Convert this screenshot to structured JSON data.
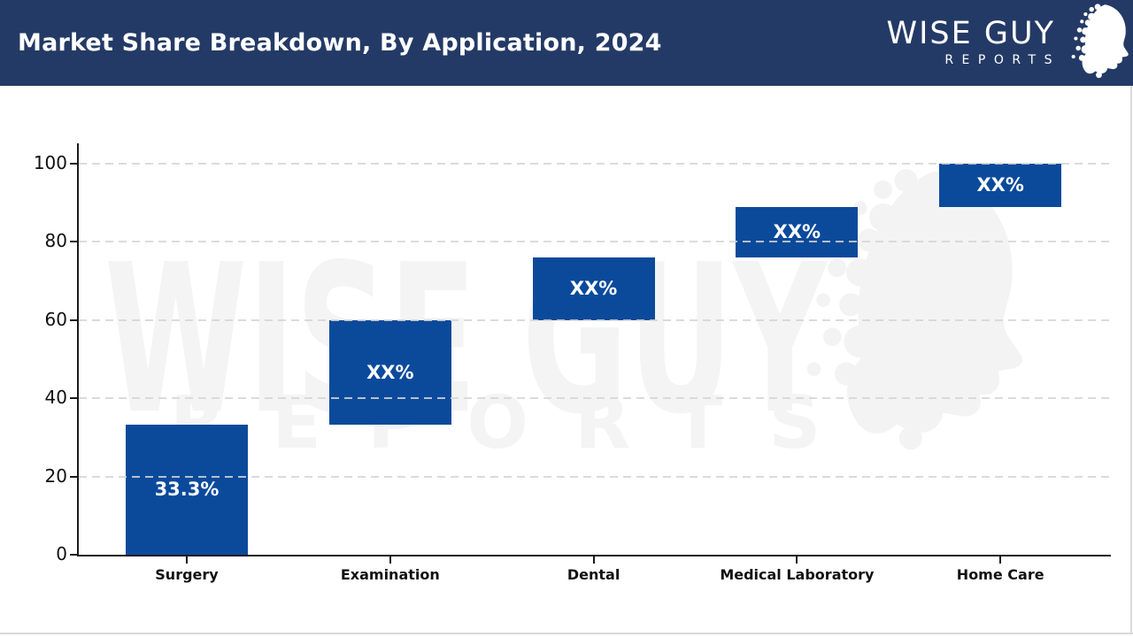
{
  "header": {
    "title": "Market Share Breakdown, By Application, 2024",
    "bg_color": "#243A66",
    "logo": {
      "line1": "WISE GUY",
      "line2": "REPORTS"
    }
  },
  "watermark": {
    "line1": "WISE GUY",
    "line2": "REPORTS",
    "color": "#F4F4F4"
  },
  "chart_data": {
    "type": "bar",
    "variant": "floating-waterfall",
    "title": "Market Share Breakdown, By Application, 2024",
    "xlabel": "",
    "ylabel": "",
    "categories": [
      "Surgery",
      "Examination",
      "Dental",
      "Medical Laboratory",
      "Home Care"
    ],
    "segments": [
      {
        "category": "Surgery",
        "start": 0,
        "end": 33.3,
        "value": 33.3,
        "label": "33.3%"
      },
      {
        "category": "Examination",
        "start": 33.3,
        "end": 60,
        "value": 26.7,
        "label": "XX%"
      },
      {
        "category": "Dental",
        "start": 60,
        "end": 76,
        "value": 16,
        "label": "XX%"
      },
      {
        "category": "Medical Laboratory",
        "start": 76,
        "end": 89,
        "value": 13,
        "label": "XX%"
      },
      {
        "category": "Home Care",
        "start": 89,
        "end": 100,
        "value": 11,
        "label": "XX%"
      }
    ],
    "yticks": [
      0,
      20,
      40,
      60,
      80,
      100
    ],
    "ylim": [
      0,
      105
    ],
    "grid": "horizontal-dashed",
    "grid_color": "#D5D5D5",
    "bar_color": "#0B4A9B",
    "bar_label_color": "#FFFFFF",
    "legend": "none"
  }
}
